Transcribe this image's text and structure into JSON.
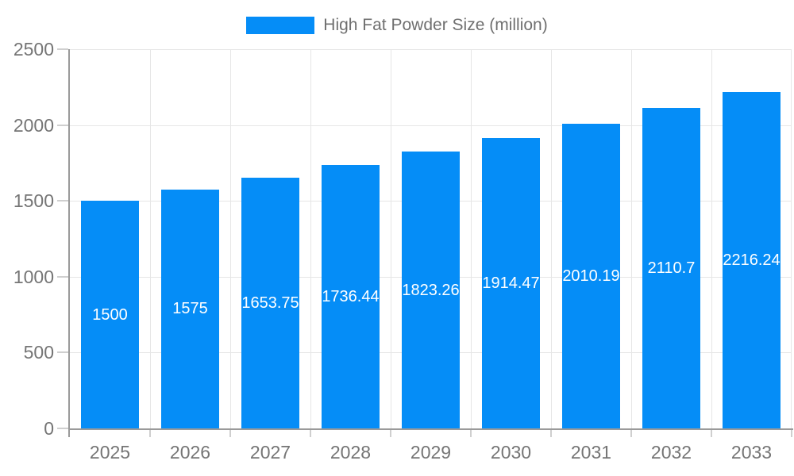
{
  "legend": {
    "label": "High Fat Powder Size (million)"
  },
  "colors": {
    "bar": "#058df7",
    "grid": "#e6e6e6",
    "tick": "#cfcfcf",
    "axis": "#9a9a9a",
    "axis_text": "#757575",
    "legend_text": "#6f6f6f",
    "value_text": "#ffffff"
  },
  "chart_data": {
    "type": "bar",
    "title": "High Fat Powder Size (million)",
    "categories": [
      "2025",
      "2026",
      "2027",
      "2028",
      "2029",
      "2030",
      "2031",
      "2032",
      "2033"
    ],
    "values": [
      1500,
      1575,
      1653.75,
      1736.44,
      1823.26,
      1914.47,
      2010.19,
      2110.7,
      2216.24
    ],
    "value_labels": [
      "1500",
      "1575",
      "1653.75",
      "1736.44",
      "1823.26",
      "1914.47",
      "2010.19",
      "2110.7",
      "2216.24"
    ],
    "series": [
      {
        "name": "High Fat Powder Size (million)",
        "values": [
          1500,
          1575,
          1653.75,
          1736.44,
          1823.26,
          1914.47,
          2010.19,
          2110.7,
          2216.24
        ]
      }
    ],
    "xlabel": "",
    "ylabel": "",
    "ylim": [
      0,
      2500
    ],
    "yticks": [
      0,
      500,
      1000,
      1500,
      2000,
      2500
    ],
    "grid": true,
    "grid_vertical": true,
    "legend_position": "top-center",
    "value_label_position": "inside-center"
  }
}
